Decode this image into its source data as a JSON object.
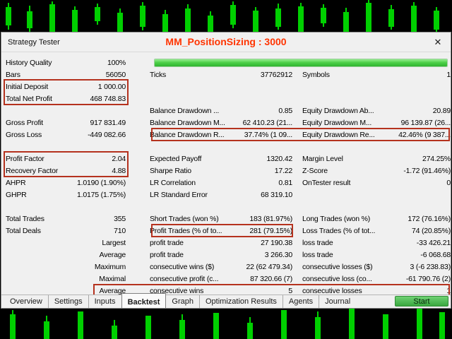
{
  "chrome": {
    "title": "Strategy Tester",
    "overlay_title": "MM_PositionSizing : 3000",
    "close_icon": "✕"
  },
  "progress": {
    "percent": 100
  },
  "rows": [
    {
      "l1": "History Quality",
      "v1": "100%"
    },
    {
      "l1": "Bars",
      "v1": "56050",
      "l2": "Ticks",
      "v2": "37762912",
      "l3": "Symbols",
      "v3": "1"
    },
    {
      "l1": "Initial Deposit",
      "v1": "1 000.00"
    },
    {
      "l1": "Total Net Profit",
      "v1": "468 748.83"
    },
    {
      "l2": "Balance Drawdown ...",
      "v2": "0.85",
      "l3": "Equity Drawdown Ab...",
      "v3": "20.89"
    },
    {
      "l1": "Gross Profit",
      "v1": "917 831.49",
      "l2": "Balance Drawdown M...",
      "v2": "62 410.23 (21...",
      "l3": "Equity Drawdown M...",
      "v3": "96 139.87 (26..."
    },
    {
      "l1": "Gross Loss",
      "v1": "-449 082.66",
      "l2": "Balance Drawdown R...",
      "v2": "37.74% (1 09...",
      "l3": "Equity Drawdown Re...",
      "v3": "42.46% (9 387..."
    },
    {},
    {
      "l1": "Profit Factor",
      "v1": "2.04",
      "l2": "Expected Payoff",
      "v2": "1320.42",
      "l3": "Margin Level",
      "v3": "274.25%"
    },
    {
      "l1": "Recovery Factor",
      "v1": "4.88",
      "l2": "Sharpe Ratio",
      "v2": "17.22",
      "l3": "Z-Score",
      "v3": "-1.72 (91.46%)"
    },
    {
      "l1": "AHPR",
      "v1": "1.0190 (1.90%)",
      "l2": "LR Correlation",
      "v2": "0.81",
      "l3": "OnTester result",
      "v3": "0"
    },
    {
      "l1": "GHPR",
      "v1": "1.0175 (1.75%)",
      "l2": "LR Standard Error",
      "v2": "68 319.10"
    },
    {},
    {
      "l1": "Total Trades",
      "v1": "355",
      "l2": "Short Trades (won %)",
      "v2": "183 (81.97%)",
      "l3": "Long Trades (won %)",
      "v3": "172 (76.16%)"
    },
    {
      "l1": "Total Deals",
      "v1": "710",
      "l2": "Profit Trades (% of to...",
      "v2": "281 (79.15%)",
      "l3": "Loss Trades (% of tot...",
      "v3": "74 (20.85%)"
    },
    {
      "v1": "Largest",
      "l2": "profit trade",
      "v2": "27 190.38",
      "l3": "loss trade",
      "v3": "-33 426.21"
    },
    {
      "v1": "Average",
      "l2": "profit trade",
      "v2": "3 266.30",
      "l3": "loss trade",
      "v3": "-6 068.68"
    },
    {
      "v1": "Maximum",
      "l2": "consecutive wins ($)",
      "v2": "22 (62 479.34)",
      "l3": "consecutive losses ($)",
      "v3": "3 (-6 238.83)"
    },
    {
      "v1": "Maximal",
      "l2": "consecutive profit (c...",
      "v2": "87 320.66 (7)",
      "l3": "consecutive loss (co...",
      "v3": "-61 790.76 (2)"
    },
    {
      "v1": "Average",
      "l2": "consecutive wins",
      "v2": "5",
      "l3": "consecutive losses",
      "v3": "1"
    }
  ],
  "tabs": [
    {
      "label": "Overview",
      "name": "tab-overview"
    },
    {
      "label": "Settings",
      "name": "tab-settings"
    },
    {
      "label": "Inputs",
      "name": "tab-inputs"
    },
    {
      "label": "Backtest",
      "name": "tab-backtest",
      "active": true
    },
    {
      "label": "Graph",
      "name": "tab-graph"
    },
    {
      "label": "Optimization Results",
      "name": "tab-optimization-results"
    },
    {
      "label": "Agents",
      "name": "tab-agents"
    },
    {
      "label": "Journal",
      "name": "tab-journal"
    }
  ],
  "footer": {
    "start_label": "Start"
  },
  "colors": {
    "annotation_red": "#b5321e",
    "overlay_title_red": "#ff3400",
    "progress_green": "#2fb42f",
    "candle_green": "#00d000",
    "start_button_green": "#3aa83f",
    "panel_gray": "#f0f0f0"
  }
}
